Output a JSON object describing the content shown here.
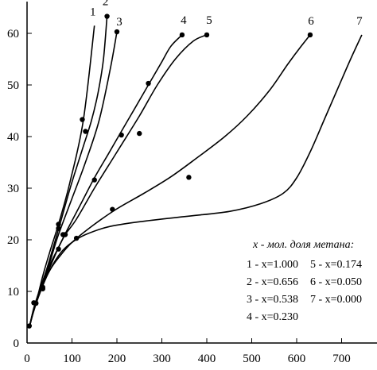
{
  "chart_data": {
    "type": "line",
    "title": "",
    "xlabel": "",
    "ylabel": "",
    "xlim": [
      0,
      750
    ],
    "ylim": [
      0,
      65
    ],
    "grid": false,
    "x_ticks": [
      0,
      100,
      200,
      300,
      400,
      500,
      600,
      700
    ],
    "y_ticks": [
      0,
      10,
      20,
      30,
      40,
      50,
      60
    ],
    "legend": {
      "title": "x - мол. доля метана:",
      "placement": "right",
      "items": [
        "1 - x=1.000",
        "2 - x=0.656",
        "3 - x=0.538",
        "4 - x=0.230",
        "5 - x=0.174",
        "6 - x=0.050",
        "7 - x=0.000"
      ]
    },
    "series": [
      {
        "name": "1",
        "x": [
          5,
          15,
          25,
          35,
          50,
          70,
          95,
          125,
          150
        ],
        "y": [
          3,
          6.5,
          9.5,
          13,
          17.5,
          23,
          31,
          43,
          61.5
        ],
        "points": []
      },
      {
        "name": "2",
        "x": [
          5,
          15,
          25,
          37,
          48,
          70,
          96,
          123,
          143,
          158,
          170,
          178
        ],
        "y": [
          3,
          6.8,
          9.5,
          12.5,
          15.5,
          22,
          30,
          37.5,
          43,
          48.5,
          55,
          63.3
        ],
        "points": [
          [
            15,
            7.8
          ],
          [
            70,
            22.2
          ],
          [
            123,
            43.3
          ],
          [
            178,
            63.3
          ]
        ]
      },
      {
        "name": "3",
        "x": [
          5,
          15,
          25,
          35,
          50,
          70,
          100,
          130,
          160,
          185,
          200
        ],
        "y": [
          3,
          6.5,
          9.2,
          12,
          15.5,
          21,
          28,
          35,
          43,
          53,
          60.3
        ],
        "points": [
          [
            20,
            7.7
          ],
          [
            70,
            23
          ],
          [
            130,
            41
          ],
          [
            200,
            60.3
          ]
        ]
      },
      {
        "name": "4",
        "x": [
          5,
          15,
          30,
          50,
          70,
          90,
          120,
          150,
          180,
          210,
          240,
          270,
          300,
          320,
          345
        ],
        "y": [
          3,
          6.5,
          10.5,
          15,
          18.5,
          22,
          27,
          32,
          36.5,
          41,
          45.5,
          50,
          54.5,
          57.5,
          59.7
        ],
        "points": [
          [
            35,
            10.8
          ],
          [
            70,
            18.2
          ],
          [
            80,
            21
          ],
          [
            150,
            31.6
          ],
          [
            210,
            40.3
          ],
          [
            270,
            50.3
          ],
          [
            345,
            59.7
          ]
        ]
      },
      {
        "name": "5",
        "x": [
          5,
          15,
          30,
          50,
          70,
          85,
          110,
          150,
          200,
          250,
          290,
          330,
          370,
          400
        ],
        "y": [
          3,
          6.5,
          10.5,
          14.5,
          18.5,
          21,
          24,
          30,
          37,
          44,
          50,
          55,
          58.5,
          59.7
        ],
        "points": [
          [
            5,
            3.3
          ],
          [
            35,
            10.5
          ],
          [
            85,
            21
          ],
          [
            250,
            40.6
          ],
          [
            400,
            59.7
          ]
        ]
      },
      {
        "name": "6",
        "x": [
          5,
          15,
          30,
          50,
          70,
          100,
          150,
          200,
          260,
          320,
          380,
          440,
          490,
          540,
          580,
          610,
          630
        ],
        "y": [
          3,
          6.5,
          10.5,
          14,
          16.5,
          19.5,
          23,
          26,
          29,
          32.2,
          36,
          40,
          44,
          49,
          54,
          57.5,
          59.7
        ],
        "points": [
          [
            110,
            20.3
          ],
          [
            190,
            25.9
          ],
          [
            360,
            32.1
          ],
          [
            630,
            59.7
          ]
        ]
      },
      {
        "name": "7",
        "x": [
          5,
          15,
          30,
          50,
          75,
          100,
          130,
          180,
          250,
          350,
          450,
          520,
          570,
          600,
          630,
          660,
          690,
          720,
          745
        ],
        "y": [
          3,
          6.2,
          10,
          14,
          17.5,
          19.5,
          21,
          22.5,
          23.5,
          24.5,
          25.5,
          27,
          29,
          32,
          37,
          43,
          49,
          55,
          59.7
        ],
        "points": []
      }
    ],
    "curve_labels": [
      "1",
      "2",
      "3",
      "4",
      "5",
      "6",
      "7"
    ]
  }
}
